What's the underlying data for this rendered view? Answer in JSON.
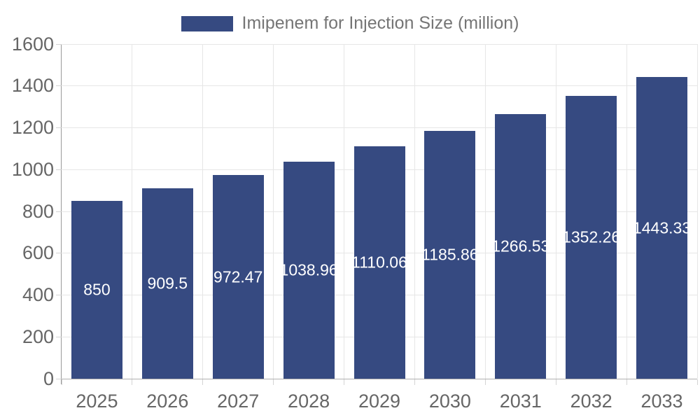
{
  "legend": {
    "label": "Imipenem for Injection Size (million)"
  },
  "chart_data": {
    "type": "bar",
    "title": "Imipenem for Injection Size (million)",
    "categories": [
      "2025",
      "2026",
      "2027",
      "2028",
      "2029",
      "2030",
      "2031",
      "2032",
      "2033"
    ],
    "values": [
      850,
      909.5,
      972.47,
      1038.96,
      1110.06,
      1185.86,
      1266.53,
      1352.26,
      1443.33
    ],
    "value_labels": [
      "850",
      "909.5",
      "972.47",
      "1038.96",
      "1110.06",
      "1185.86",
      "1266.53",
      "1352.26",
      "1443.33"
    ],
    "xlabel": "",
    "ylabel": "",
    "ylim": [
      0,
      1600
    ],
    "yticks": [
      0,
      200,
      400,
      600,
      800,
      1000,
      1200,
      1400,
      1600
    ],
    "grid": true,
    "legend_position": "top-center",
    "colors": {
      "bar": "#364A81",
      "value_label": "#FFFFFF",
      "axis_text": "#666666",
      "legend_text": "#757575",
      "gridline": "#E6E6E6",
      "tick": "#D4D4D4",
      "y_axis_line": "#9A9A9A",
      "x_axis_line": "#B0B0B0",
      "background": "#FFFFFF"
    }
  }
}
